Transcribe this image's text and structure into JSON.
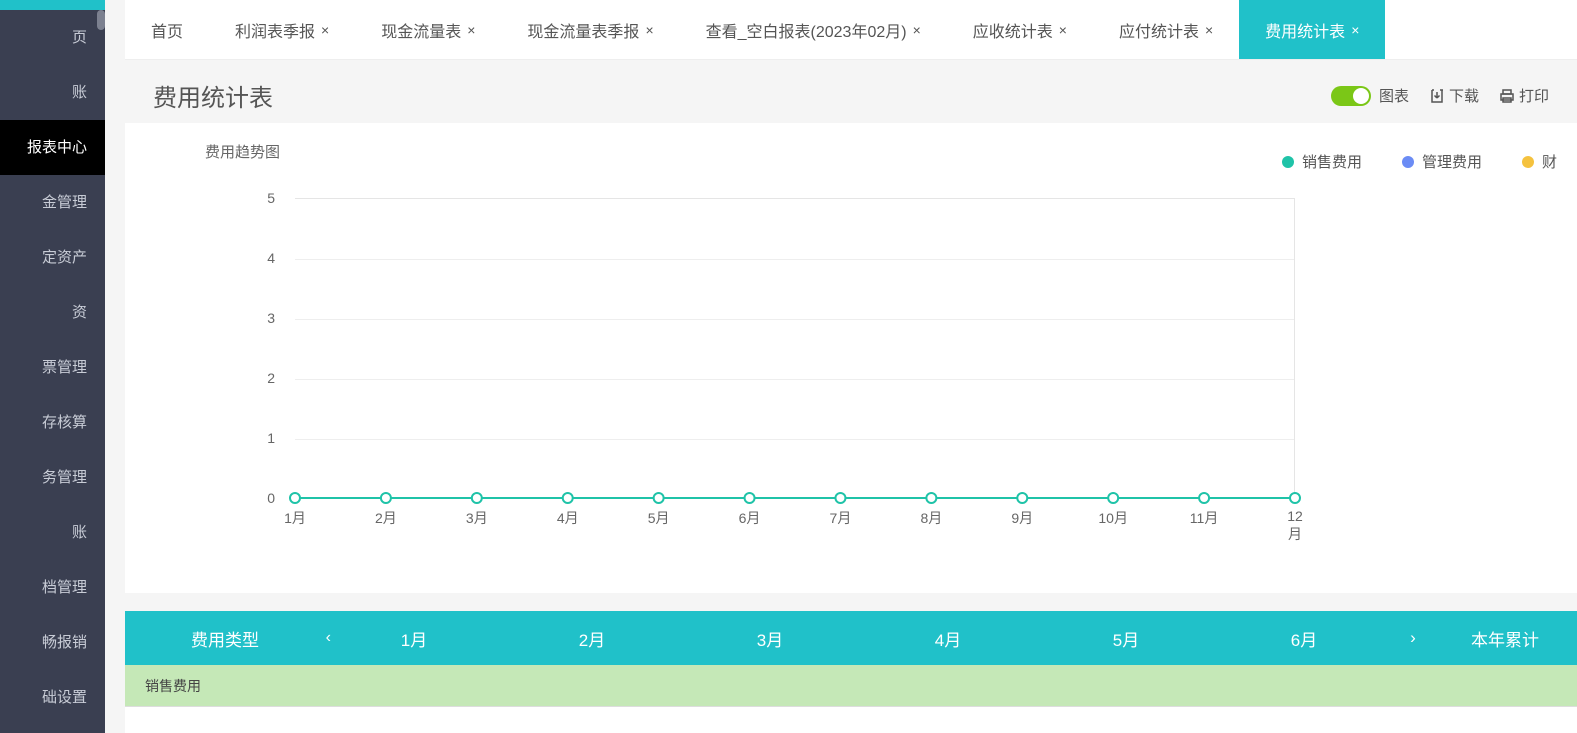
{
  "sidebar": {
    "items": [
      {
        "label": "页"
      },
      {
        "label": "账"
      },
      {
        "label": "报表中心"
      },
      {
        "label": "金管理"
      },
      {
        "label": "定资产"
      },
      {
        "label": "资"
      },
      {
        "label": "票管理"
      },
      {
        "label": "存核算"
      },
      {
        "label": "务管理"
      },
      {
        "label": "账"
      },
      {
        "label": "档管理"
      },
      {
        "label": "畅报销"
      },
      {
        "label": "础设置"
      }
    ],
    "activeIndex": 2
  },
  "tabs": [
    {
      "label": "首页",
      "closable": false
    },
    {
      "label": "利润表季报",
      "closable": true
    },
    {
      "label": "现金流量表",
      "closable": true
    },
    {
      "label": "现金流量表季报",
      "closable": true
    },
    {
      "label": "查看_空白报表(2023年02月)",
      "closable": true
    },
    {
      "label": "应收统计表",
      "closable": true
    },
    {
      "label": "应付统计表",
      "closable": true
    },
    {
      "label": "费用统计表",
      "closable": true
    }
  ],
  "activeTab": 7,
  "page": {
    "title": "费用统计表",
    "toggleLabel": "图表",
    "downloadLabel": "下载",
    "printLabel": "打印"
  },
  "chart": {
    "title": "费用趋势图",
    "type": "line",
    "legend": [
      {
        "label": "销售费用",
        "color": "#1fc3a8"
      },
      {
        "label": "管理费用",
        "color": "#6b8cf5"
      },
      {
        "label": "财",
        "color": "#f5c23e"
      }
    ],
    "xCategories": [
      "1月",
      "2月",
      "3月",
      "4月",
      "5月",
      "6月",
      "7月",
      "8月",
      "9月",
      "10月",
      "11月",
      "12月"
    ],
    "yTicks": [
      0,
      1,
      2,
      3,
      4,
      5
    ],
    "ylim": [
      0,
      5
    ],
    "series": [
      {
        "name": "销售费用",
        "color": "#1fc3a8",
        "values": [
          0,
          0,
          0,
          0,
          0,
          0,
          0,
          0,
          0,
          0,
          0,
          0
        ]
      }
    ],
    "grid_color": "#eeeeee",
    "background": "#ffffff",
    "marker": "circle",
    "marker_size": 5,
    "line_width": 2
  },
  "table": {
    "firstHeader": "费用类型",
    "months": [
      "1月",
      "2月",
      "3月",
      "4月",
      "5月",
      "6月"
    ],
    "lastHeader": "本年累计",
    "rows": [
      {
        "type": "销售费用",
        "values": [
          "",
          "",
          "",
          "",
          "",
          ""
        ],
        "total": ""
      }
    ],
    "header_bg": "#20c1c9",
    "row_bg": "#c5e8b7"
  }
}
